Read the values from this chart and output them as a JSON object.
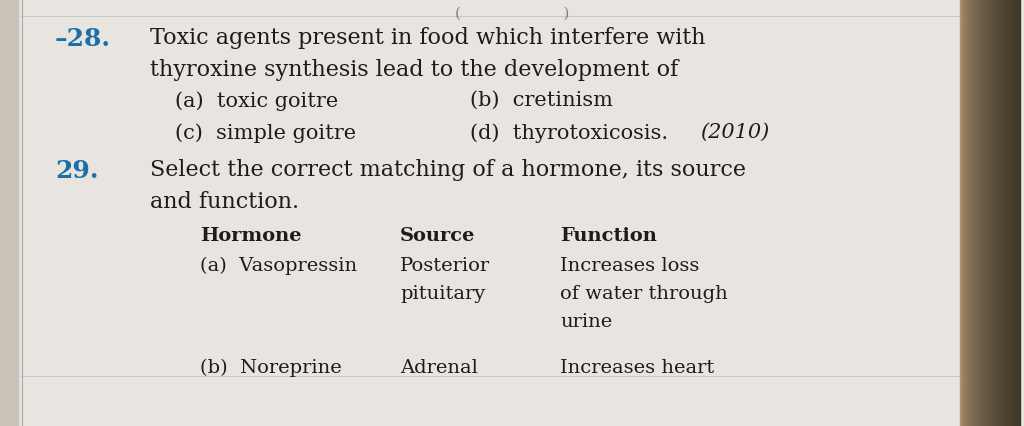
{
  "page_bg": "#e8e5e0",
  "right_shadow_color": "#5a4a35",
  "text_color": "#1c1c1c",
  "number_color": "#1a6fa8",
  "line_color": "#555555",
  "q28_number": "28.",
  "q28_line1": "Toxic agents present in food which interfere with",
  "q28_line2": "thyroxine synthesis lead to the development of",
  "q28_a": "(a)  toxic goitre",
  "q28_b": "(b)  cretinism",
  "q28_c": "(c)  simple goitre",
  "q28_d": "(d)  thyrotoxicosis.",
  "q28_year": "(2010)",
  "q29_number": "29.",
  "q29_line1": "Select the correct matching of a hormone, its source",
  "q29_line2": "and function.",
  "col_hormone": "Hormone",
  "col_source": "Source",
  "col_function": "Function",
  "row_a_hormone": "(a)  Vasopressin",
  "row_a_source1": "Posterior",
  "row_a_source2": "pituitary",
  "row_a_func1": "Increases loss",
  "row_a_func2": "of water through",
  "row_a_func3": "urine",
  "row_b_hormone": "(b)  Noreprine",
  "row_b_source": "Adrenal",
  "row_b_func": "Increases heart",
  "fs_main": 16,
  "fs_options": 15,
  "fs_table": 14
}
